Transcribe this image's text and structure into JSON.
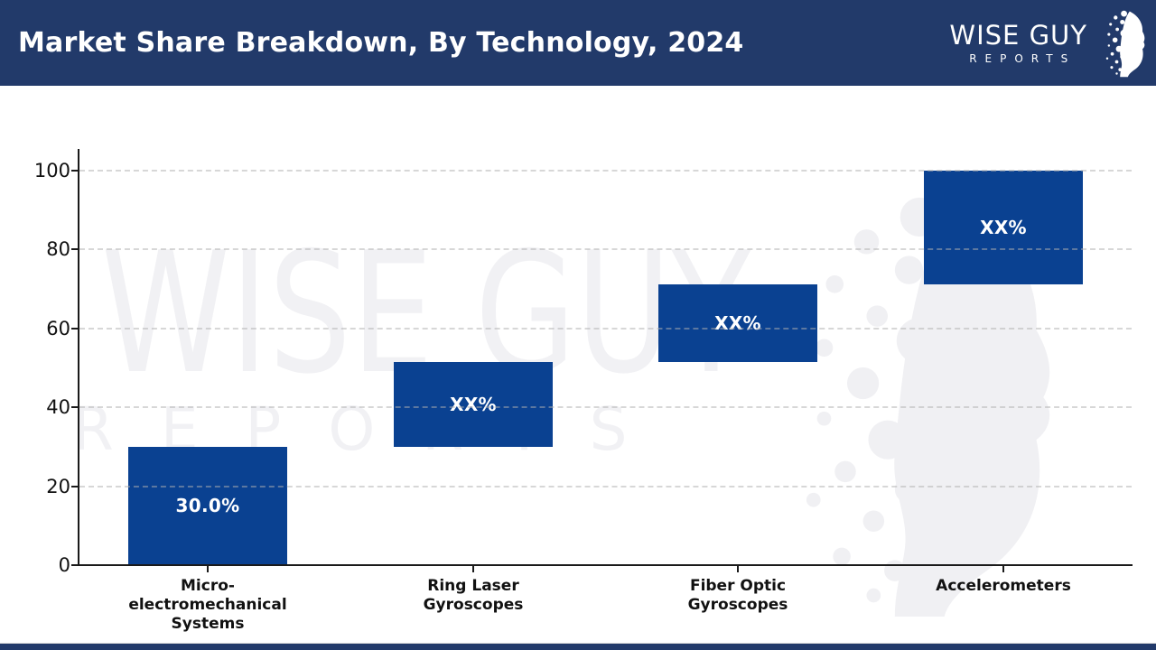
{
  "header": {
    "title": "Market Share Breakdown, By Technology, 2024",
    "logo": {
      "line1": "WISE GUY",
      "line2": "REPORTS"
    }
  },
  "watermark": {
    "line1": "WISE GUY",
    "line2": "REPORTS"
  },
  "colors": {
    "header_navy": "#223a6a",
    "bar_blue": "#0a4191",
    "grid_gray": "#dcdcdc",
    "axis_black": "#1a1a1a",
    "value_label_white": "#ffffff"
  },
  "chart_data": {
    "type": "bar",
    "subtype": "floating-waterfall",
    "title": "Market Share Breakdown, By Technology, 2024",
    "categories": [
      [
        "Micro-",
        "electromechanical",
        "Systems"
      ],
      [
        "Ring Laser",
        "Gyroscopes"
      ],
      [
        "Fiber Optic",
        "Gyroscopes"
      ],
      [
        "Accelerometers"
      ]
    ],
    "segments": [
      {
        "category": "Micro-electromechanical Systems",
        "start": 0,
        "end": 30,
        "label": "30.0%"
      },
      {
        "category": "Ring Laser Gyroscopes",
        "start": 30,
        "end": 51.5,
        "label": "XX%"
      },
      {
        "category": "Fiber Optic Gyroscopes",
        "start": 51.5,
        "end": 71,
        "label": "XX%"
      },
      {
        "category": "Accelerometers",
        "start": 71,
        "end": 100,
        "label": "XX%"
      }
    ],
    "yticks": [
      0,
      20,
      40,
      60,
      80,
      100
    ],
    "ylim": [
      0,
      105
    ],
    "xlabel": "",
    "ylabel": "",
    "grid": "horizontal-dashed",
    "legend": "none",
    "bar_color": "#0a4191",
    "value_label_color": "#ffffff"
  }
}
